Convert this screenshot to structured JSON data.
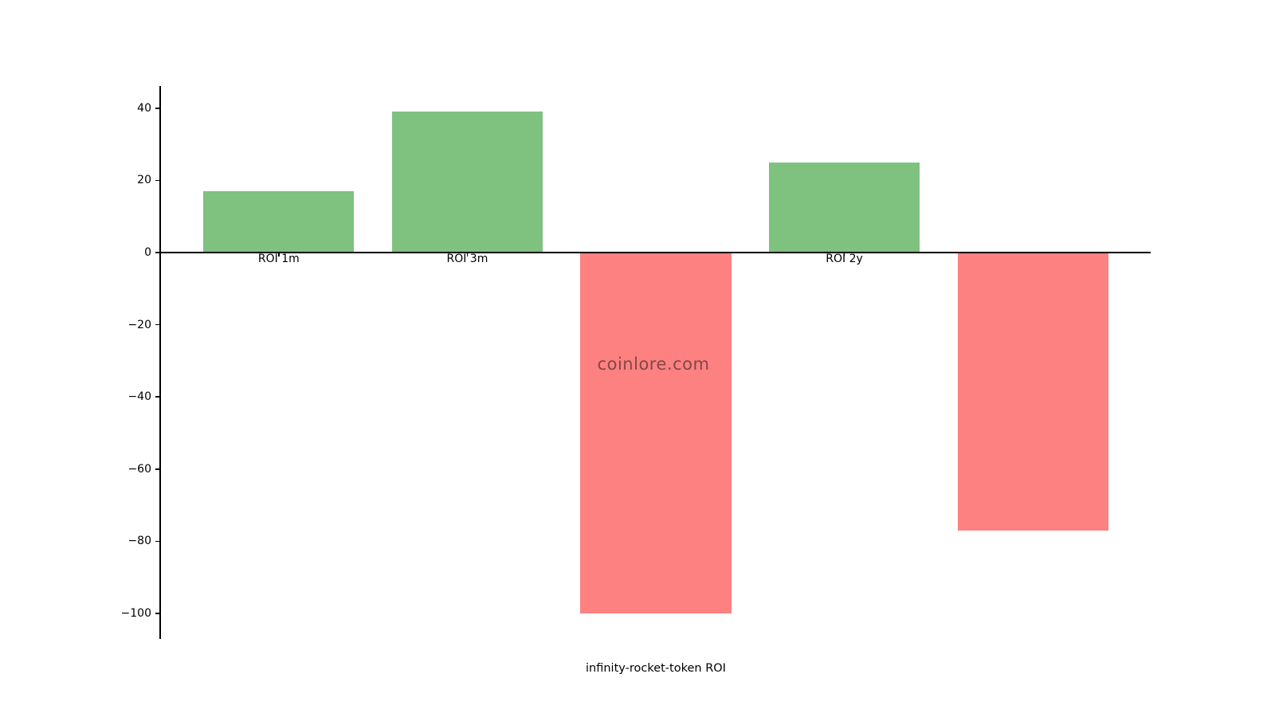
{
  "watermark": "coinlore.com",
  "colors": {
    "positive_bar": "#7fc17f",
    "negative_bar": "#fd8181",
    "axis": "#000000",
    "background": "#ffffff",
    "watermark_text": "rgba(55,35,35,0.62)"
  },
  "chart_data": {
    "type": "bar",
    "title": "infinity-rocket-token ROI",
    "xlabel": "",
    "ylabel": "",
    "categories": [
      "ROI 1m",
      "ROI 3m",
      "",
      "ROI 2y",
      ""
    ],
    "values": [
      17,
      39,
      -100,
      25,
      -77
    ],
    "bar_colors_by_sign": {
      "positive": "#7fc17f",
      "negative": "#fd8181"
    },
    "yticks": [
      40,
      20,
      0,
      -20,
      -40,
      -60,
      -80,
      -100
    ],
    "ylim": [
      -107,
      46
    ],
    "xlim": [
      -0.625,
      4.625
    ],
    "grid": false,
    "legend": null,
    "watermark": "coinlore.com",
    "notes": {
      "hidden_xtick_labels": "x tick labels of the two negative bars are covered by the red bars and are not visible"
    }
  }
}
